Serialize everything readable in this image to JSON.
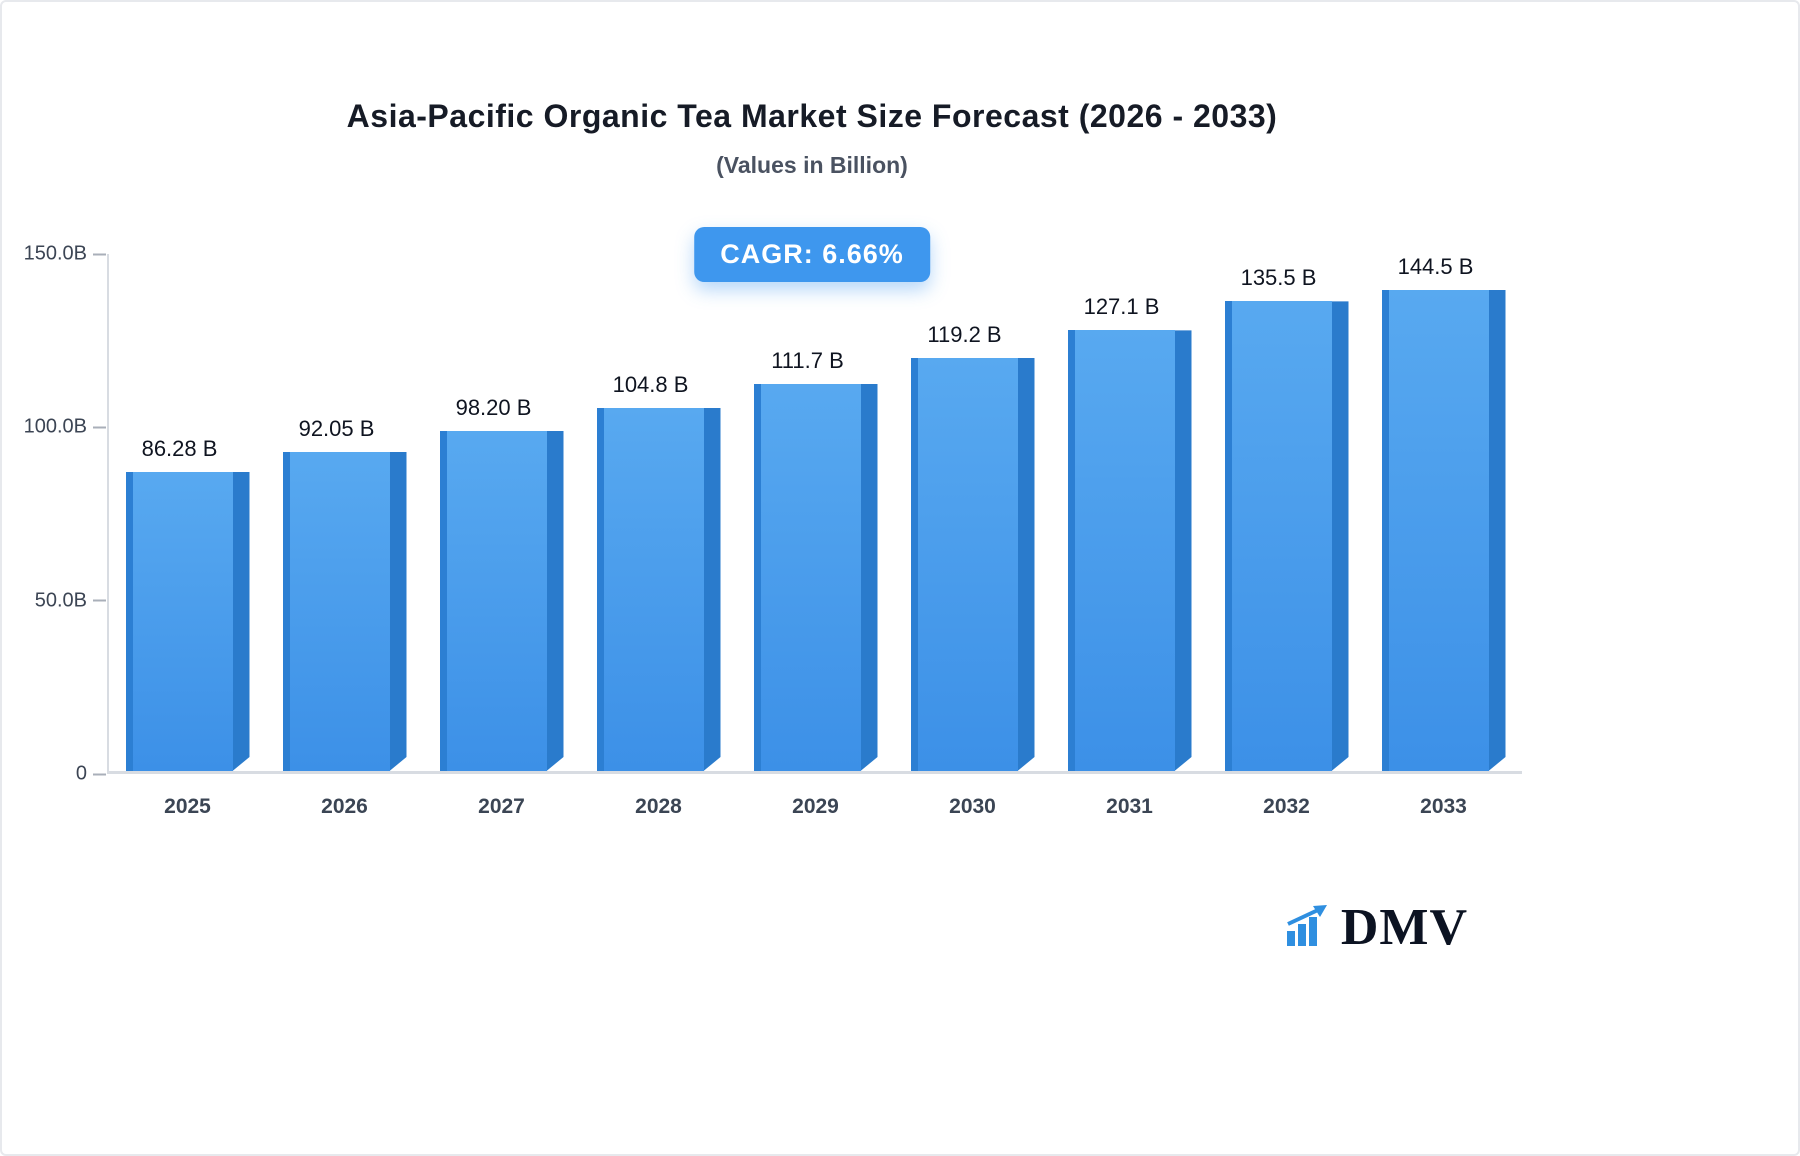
{
  "chart_data": {
    "type": "bar",
    "title": "Asia-Pacific Organic Tea Market Size Forecast (2026 - 2033)",
    "subtitle": "(Values in Billion)",
    "cagr_label": "CAGR: 6.66%",
    "categories": [
      "2025",
      "2026",
      "2027",
      "2028",
      "2029",
      "2030",
      "2031",
      "2032",
      "2033"
    ],
    "values": [
      86.28,
      92.05,
      98.2,
      104.8,
      111.7,
      119.2,
      127.1,
      135.5,
      144.5
    ],
    "value_labels": [
      "86.28 B",
      "92.05 B",
      "98.20 B",
      "104.8 B",
      "111.7 B",
      "119.2 B",
      "127.1 B",
      "135.5 B",
      "144.5 B"
    ],
    "ylabel": "",
    "xlabel": "",
    "ylim": [
      0,
      150
    ],
    "y_ticks": [
      "150.0B",
      "100.0B",
      "50.0B",
      "0"
    ],
    "y_tick_values": [
      150,
      100,
      50,
      0
    ],
    "grid": false,
    "legend": "none",
    "colors": {
      "bar_top": "#58a9f0",
      "bar_bottom": "#3c90e7",
      "bar_left_edge": "#2c7fd3",
      "bar_side": "#2a7bcc",
      "badge_bg": "#3e97ee",
      "badge_text": "#ffffff",
      "axis": "#d8dce2",
      "title_text": "#161b26",
      "subtitle_text": "#4a5261",
      "tick_text": "#3c4554",
      "xlabel_text": "#3b4554"
    }
  },
  "branding": {
    "logo_text": "DMV",
    "logo_icon": "bar-chart-growth-icon"
  }
}
